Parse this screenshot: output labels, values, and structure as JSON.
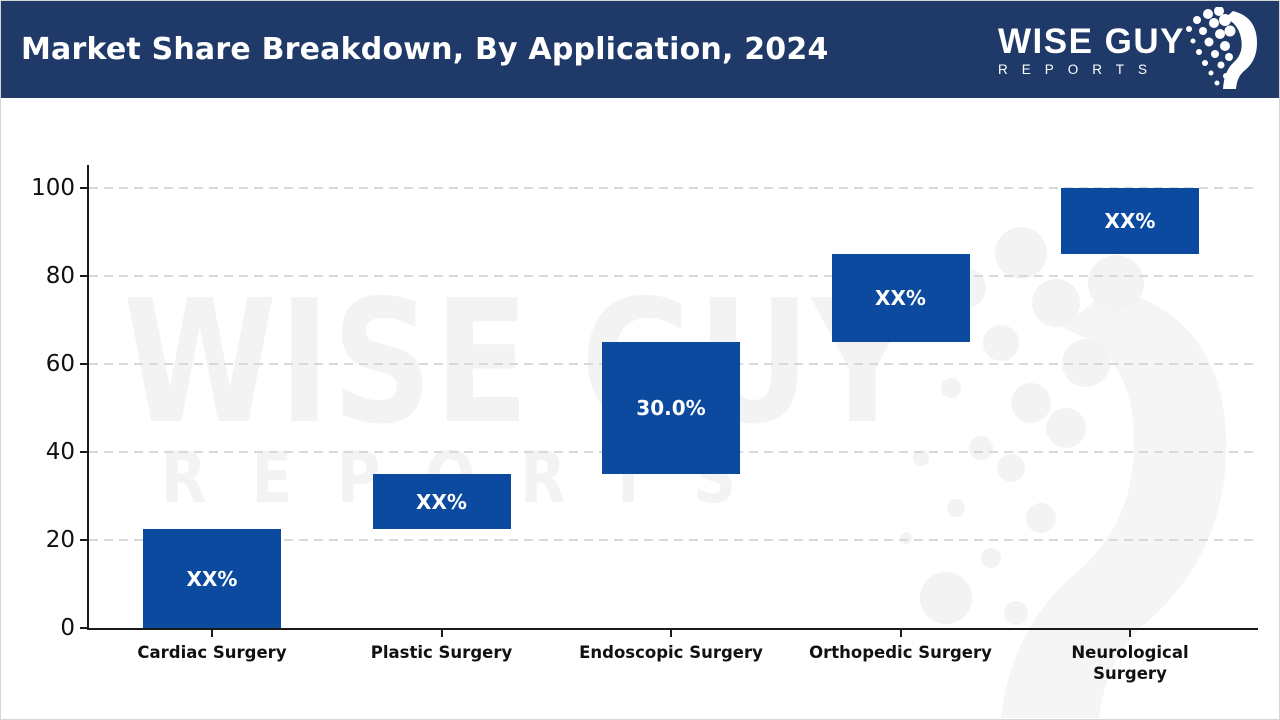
{
  "header": {
    "title": "Market Share Breakdown, By Application, 2024",
    "background_color": "#1f3a68"
  },
  "logo": {
    "main": "WISE GUY",
    "sub": "REPORTS"
  },
  "watermark": {
    "main": "WISE GUY",
    "sub": "REPORTS"
  },
  "chart_data": {
    "type": "bar",
    "subtype": "waterfall",
    "title": "Market Share Breakdown, By Application, 2024",
    "categories": [
      "Cardiac Surgery",
      "Plastic Surgery",
      "Endoscopic Surgery",
      "Orthopedic Surgery",
      "Neurological\nSurgery"
    ],
    "segments": [
      {
        "category": "Cardiac Surgery",
        "start": 0,
        "end": 22.5,
        "label": "XX%"
      },
      {
        "category": "Plastic Surgery",
        "start": 22.5,
        "end": 35,
        "label": "XX%"
      },
      {
        "category": "Endoscopic Surgery",
        "start": 35,
        "end": 65,
        "label": "30.0%"
      },
      {
        "category": "Orthopedic Surgery",
        "start": 65,
        "end": 85,
        "label": "XX%"
      },
      {
        "category": "Neurological Surgery",
        "start": 85,
        "end": 100,
        "label": "XX%"
      }
    ],
    "yticks": [
      0,
      20,
      40,
      60,
      80,
      100
    ],
    "ylim": [
      0,
      105
    ],
    "xlabel": "",
    "ylabel": "",
    "grid": "horizontal-dashed",
    "legend": "none",
    "bar_color": "#0b4a9f",
    "bar_label_color": "#ffffff",
    "axis_color": "#1a1a1a",
    "gridline_color": "#d9d9d9"
  }
}
